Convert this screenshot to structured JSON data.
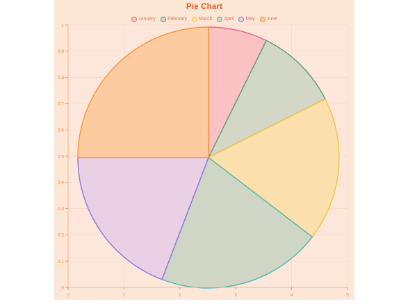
{
  "page": {
    "background": "#ffffff"
  },
  "card": {
    "background": "#fce7d7"
  },
  "chart_data": {
    "type": "pie",
    "title": "Pie Chart",
    "title_color": "#f2571f",
    "legend_position": "top",
    "legend_text_color": "#ee6f54",
    "direction": "clockwise",
    "start_angle": "12-oclock",
    "series": [
      {
        "name": "January",
        "value": 0.073,
        "fill": "#fac2c3",
        "stroke": "#f0697f"
      },
      {
        "name": "February",
        "value": 0.103,
        "fill": "#d2d8c5",
        "stroke": "#579c80"
      },
      {
        "name": "March",
        "value": 0.178,
        "fill": "#fbdfad",
        "stroke": "#f9c23c"
      },
      {
        "name": "April",
        "value": 0.204,
        "fill": "#cfd6c6",
        "stroke": "#4eb7ab"
      },
      {
        "name": "May",
        "value": 0.192,
        "fill": "#ead0e5",
        "stroke": "#8a74de"
      },
      {
        "name": "June",
        "value": 0.25,
        "fill": "#fccba0",
        "stroke": "#fd9334"
      }
    ],
    "axes": {
      "x": {
        "min": 0,
        "max": 5,
        "ticks": [
          "0",
          "1",
          "2",
          "3",
          "4",
          "5"
        ]
      },
      "y": {
        "min": 0,
        "max": 1,
        "ticks": [
          "0",
          "0.1",
          "0.2",
          "0.3",
          "0.4",
          "0.5",
          "0.6",
          "0.7",
          "0.8",
          "0.9",
          "1"
        ]
      },
      "grid": true,
      "grid_color": "#f8d6c2",
      "axis_color": "#f2b48c",
      "tick_color": "#f1813b",
      "tick_label_color": "#f1813b"
    },
    "plot_bg": "#fde7db"
  }
}
